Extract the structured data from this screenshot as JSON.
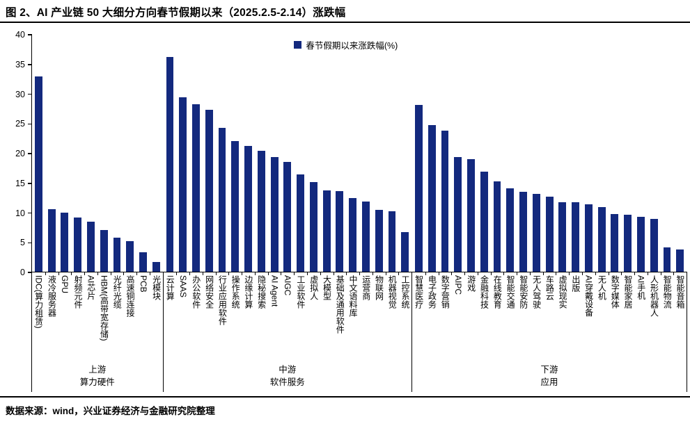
{
  "title": "图 2、AI 产业链 50 大细分方向春节假期以来（2025.2.5-2.14）涨跌幅",
  "footer": "数据来源：wind，兴业证券经济与金融研究院整理",
  "chart_data": {
    "type": "bar",
    "title": "图 2、AI 产业链 50 大细分方向春节假期以来（2025.2.5-2.14）涨跌幅",
    "legend": "春节假期以来涨跌幅(%)",
    "legend_position": "top-center",
    "grid": false,
    "bar_color": "#13297E",
    "axis_color": "#000000",
    "ylim": [
      0,
      40
    ],
    "yticks": [
      0,
      5,
      10,
      15,
      20,
      25,
      30,
      35,
      40
    ],
    "groups": [
      {
        "name": [
          "上游",
          "算力硬件"
        ],
        "categories": [
          "IDC(算力租赁)",
          "液冷服务器",
          "GPU",
          "射频元件",
          "AI芯片",
          "HBM(高带宽存储)",
          "光纤光缆",
          "高速铜连接",
          "PCB",
          "光模块"
        ],
        "values": [
          33.0,
          10.6,
          10.0,
          9.1,
          8.4,
          7.0,
          5.8,
          5.2,
          3.3,
          1.7
        ]
      },
      {
        "name": [
          "中游",
          "软件服务"
        ],
        "categories": [
          "云计算",
          "SAAS",
          "办公软件",
          "网络安全",
          "行业应用软件",
          "操作系统",
          "边缘计算",
          "隐秘搜索",
          "AI Agent",
          "AIGC",
          "工业软件",
          "虚拟人",
          "大模型",
          "基础及通用软件",
          "中文语料库",
          "运营商",
          "物联网",
          "机器视觉",
          "工控系统"
        ],
        "values": [
          36.2,
          29.5,
          28.3,
          27.3,
          24.3,
          22.1,
          21.2,
          20.4,
          19.3,
          18.5,
          16.4,
          15.1,
          13.7,
          13.6,
          12.4,
          11.8,
          10.4,
          10.2,
          6.7
        ]
      },
      {
        "name": [
          "下游",
          "应用"
        ],
        "categories": [
          "智慧医疗",
          "电子政务",
          "数字营销",
          "AIPC",
          "游戏",
          "金融科技",
          "在线教育",
          "智能交通",
          "智能安防",
          "无人驾驶",
          "车路云",
          "虚拟现实",
          "出版",
          "AI穿戴设备",
          "无人机",
          "数字媒体",
          "智能家居",
          "AI手机",
          "人形机器人",
          "智能物流",
          "智能音箱"
        ],
        "values": [
          28.2,
          24.7,
          23.8,
          19.3,
          19.0,
          16.9,
          15.3,
          14.1,
          13.5,
          13.1,
          12.7,
          11.7,
          11.7,
          11.4,
          10.9,
          9.7,
          9.6,
          9.3,
          8.9,
          4.1,
          3.8
        ]
      }
    ]
  }
}
